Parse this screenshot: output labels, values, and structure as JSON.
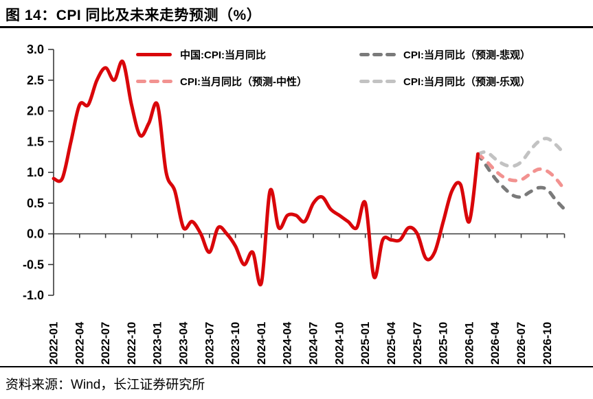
{
  "figure": {
    "title": "图 14：CPI 同比及未来走势预测（%）",
    "source": "资料来源：Wind，长江证券研究所"
  },
  "colors": {
    "actual": "#D9060A",
    "forecast_pessimistic": "#7A7A7A",
    "forecast_neutral": "#F29290",
    "forecast_optimistic": "#C2C2C2",
    "axis": "#3A3A3A",
    "text": "#000000"
  },
  "chart_data": {
    "type": "line",
    "title": "CPI 同比及未来走势预测",
    "unit": "%",
    "ylabel": "",
    "xlabel": "",
    "ylim": [
      -1.0,
      3.0
    ],
    "yticks": [
      3.0,
      2.5,
      2.0,
      1.5,
      1.0,
      0.5,
      0.0,
      -0.5,
      -1.0
    ],
    "grid": false,
    "legend_position": "top",
    "x_months_start": "2022-01",
    "x_months_count": 60,
    "xtick_month_interval": 3,
    "xtick_labels": [
      "2022-01",
      "2022-04",
      "2022-07",
      "2022-10",
      "2023-01",
      "2023-04",
      "2023-07",
      "2023-10",
      "2024-01",
      "2024-04",
      "2024-07",
      "2024-10",
      "2025-01",
      "2025-04",
      "2025-07",
      "2025-10",
      "2026-01",
      "2026-04",
      "2026-07",
      "2026-10"
    ],
    "series": [
      {
        "name": "中国:CPI:当月同比",
        "role": "actual",
        "line_style": "solid",
        "color": "#D9060A",
        "start_month_index": 0,
        "values": [
          0.9,
          0.9,
          1.5,
          2.1,
          2.1,
          2.5,
          2.7,
          2.5,
          2.8,
          2.1,
          1.6,
          1.8,
          2.1,
          1.0,
          0.7,
          0.1,
          0.2,
          0.0,
          -0.3,
          0.1,
          0.0,
          -0.2,
          -0.5,
          -0.3,
          -0.8,
          0.7,
          0.1,
          0.3,
          0.3,
          0.2,
          0.5,
          0.6,
          0.4,
          0.3,
          0.2,
          0.1,
          0.5,
          -0.7,
          -0.1,
          -0.1,
          -0.1,
          0.1,
          0.0,
          -0.4,
          -0.3,
          0.2,
          0.7,
          0.8,
          0.2,
          1.3
        ]
      },
      {
        "name": "CPI:当月同比（预测-悲观）",
        "role": "forecast-pessimistic",
        "line_style": "dashed",
        "color": "#7A7A7A",
        "start_month_index": 49,
        "values": [
          1.3,
          1.1,
          0.9,
          0.75,
          0.63,
          0.6,
          0.68,
          0.75,
          0.72,
          0.55,
          0.4
        ]
      },
      {
        "name": "CPI:当月同比（预测-中性）",
        "role": "forecast-neutral",
        "line_style": "dashed",
        "color": "#F29290",
        "start_month_index": 49,
        "values": [
          1.3,
          1.18,
          1.03,
          0.92,
          0.87,
          0.88,
          0.97,
          1.05,
          1.02,
          0.9,
          0.72
        ]
      },
      {
        "name": "CPI:当月同比（预测-乐观）",
        "role": "forecast-optimistic",
        "line_style": "dashed",
        "color": "#C2C2C2",
        "start_month_index": 49,
        "values": [
          1.3,
          1.33,
          1.22,
          1.13,
          1.1,
          1.17,
          1.35,
          1.5,
          1.55,
          1.45,
          1.3
        ]
      }
    ]
  }
}
